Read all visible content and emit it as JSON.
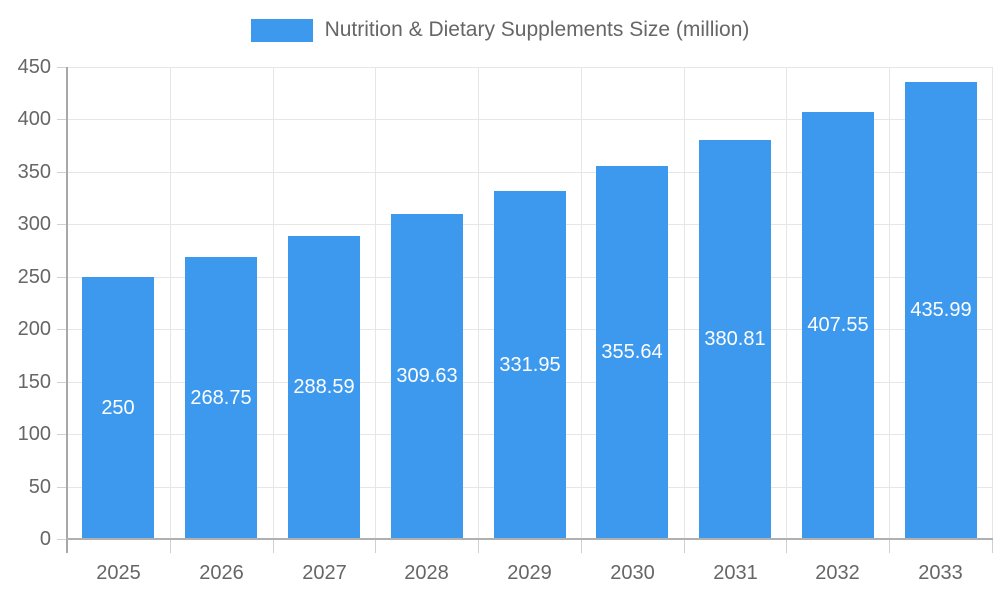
{
  "legend": {
    "label": "Nutrition & Dietary Supplements Size (million)"
  },
  "colors": {
    "bar": "#3C99EE",
    "grid": "#e6e6e6",
    "axis_y": "#a8a8a8",
    "axis_x": "#b0b0b0",
    "tick_mark": "#d0d0d0",
    "tick_text": "#666666",
    "value_label": "#ffffff",
    "background": "#ffffff"
  },
  "chart_data": {
    "type": "bar",
    "title": "Nutrition & Dietary Supplements Size (million)",
    "categories": [
      "2025",
      "2026",
      "2027",
      "2028",
      "2029",
      "2030",
      "2031",
      "2032",
      "2033"
    ],
    "values": [
      250,
      268.75,
      288.59,
      309.63,
      331.95,
      355.64,
      380.81,
      407.55,
      435.99
    ],
    "value_labels": [
      "250",
      "268.75",
      "288.59",
      "309.63",
      "331.95",
      "355.64",
      "380.81",
      "407.55",
      "435.99"
    ],
    "series": [
      {
        "name": "Nutrition & Dietary Supplements Size (million)",
        "values": [
          250,
          268.75,
          288.59,
          309.63,
          331.95,
          355.64,
          380.81,
          407.55,
          435.99
        ]
      }
    ],
    "xlabel": "",
    "ylabel": "",
    "ylim": [
      0,
      450
    ],
    "yticks": [
      0,
      50,
      100,
      150,
      200,
      250,
      300,
      350,
      400,
      450
    ],
    "grid": true,
    "legend_position": "top",
    "value_label_position": "center"
  }
}
